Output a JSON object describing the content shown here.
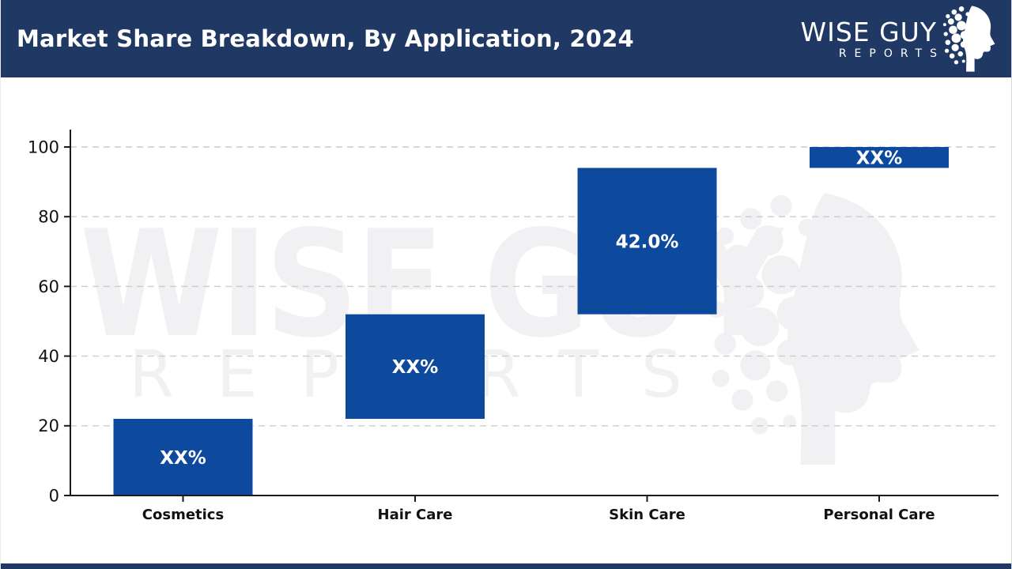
{
  "header": {
    "title": "Market Share Breakdown, By Application, 2024",
    "logo": {
      "line1": "WISE GUY",
      "line2": "REPORTS"
    }
  },
  "watermark": {
    "line1": "WISE GUY",
    "line2": "REPORTS"
  },
  "colors": {
    "header_bg": "#1f3864",
    "footer_bg": "#1f3864",
    "bar": "#0d4a9e",
    "bar_label": "#ffffff",
    "grid": "#cccccc",
    "axis": "#1a1a1a",
    "tick_label": "#111111",
    "watermark": "#f1f1f3",
    "title_text": "#ffffff"
  },
  "chart_data": {
    "type": "bar",
    "subtype": "waterfall-breakdown",
    "title": "Market Share Breakdown, By Application, 2024",
    "categories": [
      "Cosmetics",
      "Hair Care",
      "Skin Care",
      "Personal Care"
    ],
    "segments": [
      {
        "category": "Cosmetics",
        "start": 0,
        "end": 22,
        "label": "XX%"
      },
      {
        "category": "Hair Care",
        "start": 22,
        "end": 52,
        "label": "XX%"
      },
      {
        "category": "Skin Care",
        "start": 52,
        "end": 94,
        "label": "42.0%"
      },
      {
        "category": "Personal Care",
        "start": 94,
        "end": 100,
        "label": "XX%"
      }
    ],
    "values_pct": [
      22,
      30,
      42,
      6
    ],
    "bar_labels": [
      "XX%",
      "XX%",
      "42.0%",
      "XX%"
    ],
    "yticks": [
      0,
      20,
      40,
      60,
      80,
      100
    ],
    "ylim": [
      0,
      105
    ],
    "xlabel": "",
    "ylabel": "",
    "grid": "horizontal-dashed",
    "legend": "none"
  }
}
